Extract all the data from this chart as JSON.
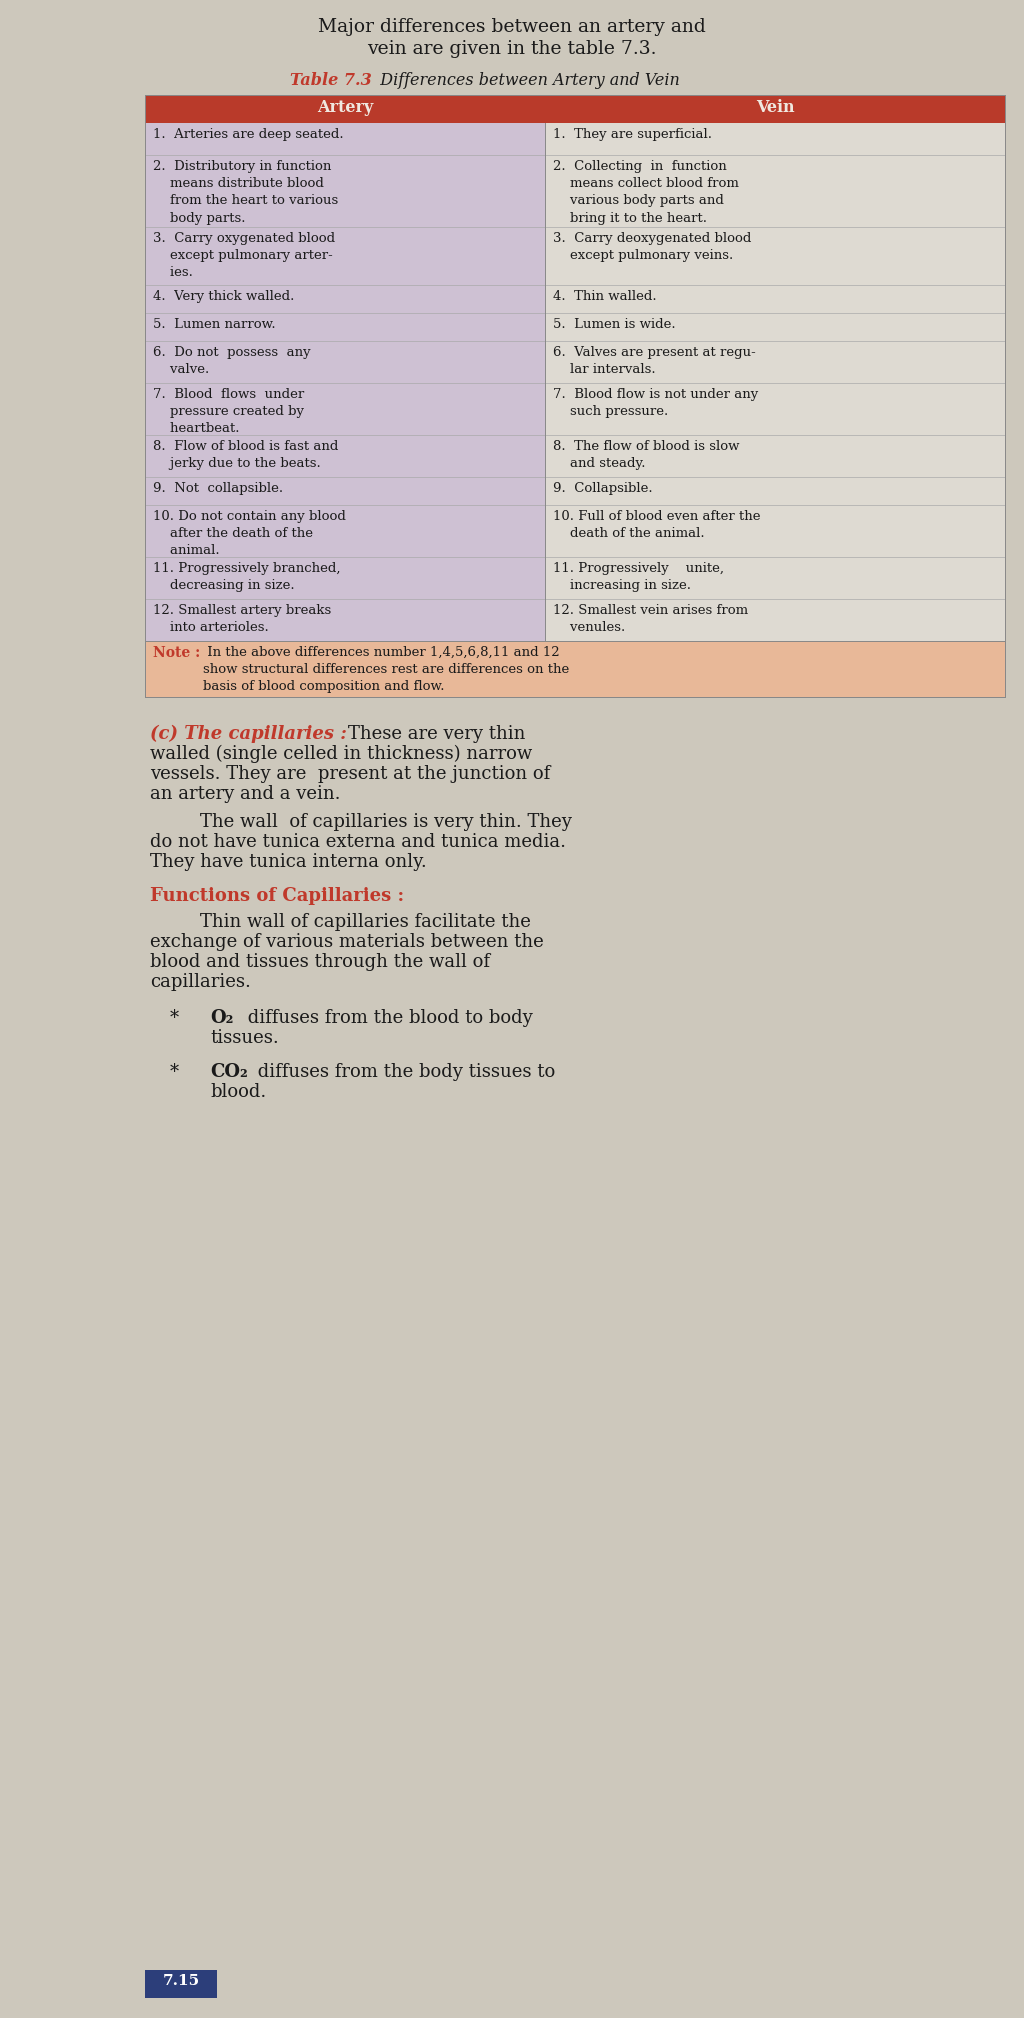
{
  "page_bg": "#cdc8bc",
  "title_line1": "Major differences between an artery and",
  "title_line2": "vein are given in the table 7.3.",
  "table_label_bold": "Table 7.3",
  "table_label_rest": "  Differences between Artery and Vein",
  "header_bg": "#b93a2a",
  "header_text_color": "#f0e8e0",
  "artery_col_bg": "#cfc0d8",
  "vein_col_bg": "#dedad2",
  "note_bg": "#e8b898",
  "note_text_color": "#c0392b",
  "artery_rows": [
    "1.  Arteries are deep seated.",
    "2.  Distributory in function\n    means distribute blood\n    from the heart to various\n    body parts.",
    "3.  Carry oxygenated blood\n    except pulmonary arter-\n    ies.",
    "4.  Very thick walled.",
    "5.  Lumen narrow.",
    "6.  Do not  possess  any\n    valve.",
    "7.  Blood  flows  under\n    pressure created by\n    heartbeat.",
    "8.  Flow of blood is fast and\n    jerky due to the beats.",
    "9.  Not  collapsible.",
    "10. Do not contain any blood\n    after the death of the\n    animal.",
    "11. Progressively branched,\n    decreasing in size.",
    "12. Smallest artery breaks\n    into arterioles."
  ],
  "vein_rows": [
    "1.  They are superficial.",
    "2.  Collecting  in  function\n    means collect blood from\n    various body parts and\n    bring it to the heart.",
    "3.  Carry deoxygenated blood\n    except pulmonary veins.",
    "4.  Thin walled.",
    "5.  Lumen is wide.",
    "6.  Valves are present at regu-\n    lar intervals.",
    "7.  Blood flow is not under any\n    such pressure.",
    "8.  The flow of blood is slow\n    and steady.",
    "9.  Collapsible.",
    "10. Full of blood even after the\n    death of the animal.",
    "11. Progressively    unite,\n    increasing in size.",
    "12. Smallest vein arises from\n    venules."
  ],
  "note_label": "Note :",
  "note_body": " In the above differences number 1,4,5,6,8,11 and 12\nshow structural differences rest are differences on the\nbasis of blood composition and flow.",
  "cap_bold": "(c) The capillaries :",
  "cap_rest": " These are very thin\nwalled (single celled in thickness) narrow\nvessels. They are  present at the junction of\nan artery and a vein.",
  "cap_para2_indent": "    The wall  of capillaries is very thin. They\ndo not have tunica externa and tunica media.\nThey have tunica interna only.",
  "func_heading": "Functions of Capillaries :",
  "func_para": "    Thin wall of capillaries facilitate the\nexchange of various materials between the\nblood and tissues through the wall of\ncapillaries.",
  "page_num": "7.15",
  "page_num_bg": "#2c3e7a",
  "page_num_color": "#ffffff",
  "red_color": "#c0392b",
  "dark_text": "#1a1a1a"
}
